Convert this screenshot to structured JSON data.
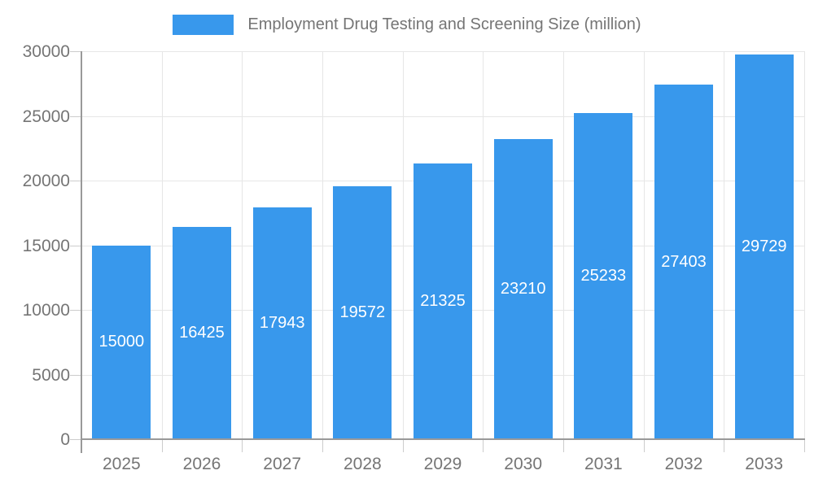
{
  "legend": {
    "label": "Employment Drug Testing and Screening Size (million)"
  },
  "chart_data": {
    "type": "bar",
    "title": "Employment Drug Testing and Screening Size (million)",
    "categories": [
      "2025",
      "2026",
      "2027",
      "2028",
      "2029",
      "2030",
      "2031",
      "2032",
      "2033"
    ],
    "values": [
      15000,
      16425,
      17943,
      19572,
      21325,
      23210,
      25233,
      27403,
      29729
    ],
    "bar_value_labels": [
      "15000",
      "16425",
      "17943",
      "19572",
      "21325",
      "23210",
      "25233",
      "27403",
      "29729"
    ],
    "xlabel": "",
    "ylabel": "",
    "ylim": [
      0,
      30000
    ],
    "ytick_step": 5000,
    "ytick_labels": [
      "0",
      "5000",
      "10000",
      "15000",
      "20000",
      "25000",
      "30000"
    ],
    "grid": "horizontal-and-vertical",
    "legend_position": "top-center",
    "bar_labels_inside": true
  },
  "palette": {
    "bar_fill": "#3898EC",
    "bar_label_color": "#FFFFFF",
    "axis_text": "#757575",
    "axis_line": "#999999",
    "gridline": "#E6E6E6",
    "tick": "#CCCCCC",
    "background": "#FFFFFF"
  }
}
